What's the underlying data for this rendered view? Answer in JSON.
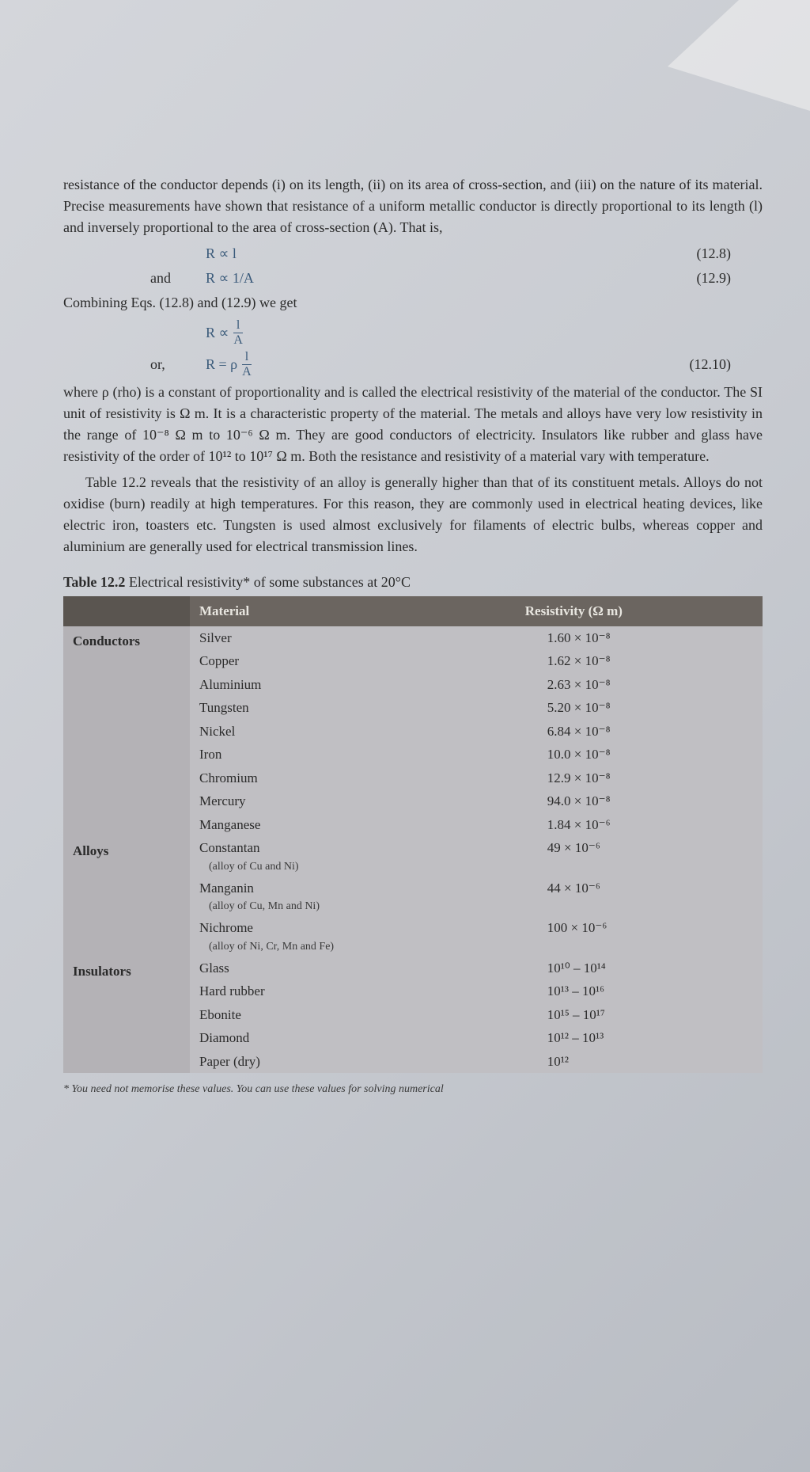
{
  "para1": "resistance of the conductor depends (i) on its length, (ii) on its area of cross-section, and (iii) on the nature of its material. Precise measurements have shown that resistance of a uniform metallic conductor is directly proportional to its length (l) and inversely proportional to the area of cross-section (A). That is,",
  "eq1": {
    "expr": "R ∝ l",
    "num": "(12.8)"
  },
  "eq2": {
    "label": "and",
    "expr": "R ∝ 1/A",
    "num": "(12.9)"
  },
  "combine": "Combining Eqs. (12.8) and (12.9) we get",
  "eq3": {
    "lhs": "R ∝",
    "num_": "l",
    "den": "A"
  },
  "eq4": {
    "label": "or,",
    "lhs": "R = ρ",
    "num_": "l",
    "den": "A",
    "num": "(12.10)"
  },
  "para2": "where ρ (rho) is a constant of proportionality and is called the electrical resistivity of the material of the conductor. The SI unit of resistivity is Ω m. It is a characteristic property of the material. The metals and alloys have very low resistivity in the range of 10⁻⁸ Ω m to 10⁻⁶ Ω m. They are good conductors of electricity. Insulators like rubber and glass have resistivity of the order of 10¹² to 10¹⁷ Ω m. Both the resistance and resistivity of a material vary with temperature.",
  "para3": "Table 12.2 reveals that the resistivity of an alloy is generally higher than that of its constituent metals. Alloys do not oxidise (burn) readily at high temperatures. For this reason, they are commonly used in electrical heating devices, like electric iron, toasters etc. Tungsten is used almost exclusively for filaments of electric bulbs, whereas copper and aluminium are generally used for electrical transmission lines.",
  "table_caption_bold": "Table 12.2",
  "table_caption_rest": " Electrical resistivity* of some substances at 20°C",
  "headers": [
    "",
    "Material",
    "Resistivity (Ω m)"
  ],
  "groups": [
    {
      "category": "Conductors",
      "rows": [
        {
          "material": "Silver",
          "value": "1.60 × 10⁻⁸"
        },
        {
          "material": "Copper",
          "value": "1.62 × 10⁻⁸"
        },
        {
          "material": "Aluminium",
          "value": "2.63 × 10⁻⁸"
        },
        {
          "material": "Tungsten",
          "value": "5.20 × 10⁻⁸"
        },
        {
          "material": "Nickel",
          "value": "6.84 × 10⁻⁸"
        },
        {
          "material": "Iron",
          "value": "10.0 × 10⁻⁸"
        },
        {
          "material": "Chromium",
          "value": "12.9 × 10⁻⁸"
        },
        {
          "material": "Mercury",
          "value": "94.0 × 10⁻⁸"
        },
        {
          "material": "Manganese",
          "value": "1.84 × 10⁻⁶"
        }
      ]
    },
    {
      "category": "Alloys",
      "rows": [
        {
          "material": "Constantan",
          "note": "(alloy of Cu and Ni)",
          "value": "49 × 10⁻⁶"
        },
        {
          "material": "Manganin",
          "note": "(alloy of Cu, Mn and Ni)",
          "value": "44 × 10⁻⁶"
        },
        {
          "material": "Nichrome",
          "note": "(alloy of Ni, Cr, Mn and Fe)",
          "value": "100 × 10⁻⁶"
        }
      ]
    },
    {
      "category": "Insulators",
      "rows": [
        {
          "material": "Glass",
          "value": "10¹⁰ – 10¹⁴"
        },
        {
          "material": "Hard rubber",
          "value": "10¹³ – 10¹⁶"
        },
        {
          "material": "Ebonite",
          "value": "10¹⁵ – 10¹⁷"
        },
        {
          "material": "Diamond",
          "value": "10¹² – 10¹³"
        },
        {
          "material": "Paper (dry)",
          "value": "10¹²"
        }
      ]
    }
  ],
  "footnote": "* You need not memorise these values. You can use these values for solving numerical"
}
